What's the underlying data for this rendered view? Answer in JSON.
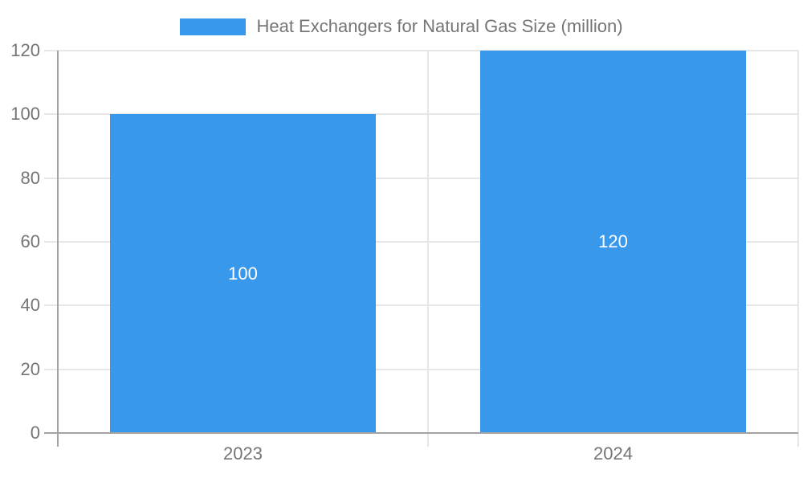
{
  "chart_data": {
    "type": "bar",
    "title": "Heat Exchangers for Natural Gas Size (million)",
    "categories": [
      "2023",
      "2024"
    ],
    "values": [
      100,
      120
    ],
    "series": [
      {
        "name": "Heat Exchangers for Natural Gas Size (million)",
        "values": [
          100,
          120
        ]
      }
    ],
    "xlabel": "",
    "ylabel": "",
    "ylim": [
      0,
      120
    ],
    "yticks": [
      0,
      20,
      40,
      60,
      80,
      100,
      120
    ],
    "grid": true,
    "legend_position": "top-center",
    "data_label_position": "inside-center",
    "colors": {
      "bar": "#3898EC",
      "text": "#757575",
      "gridline": "#e6e6e6",
      "axis": "#a3a3a3",
      "bar_label": "#ffffff",
      "background": "#ffffff"
    }
  }
}
